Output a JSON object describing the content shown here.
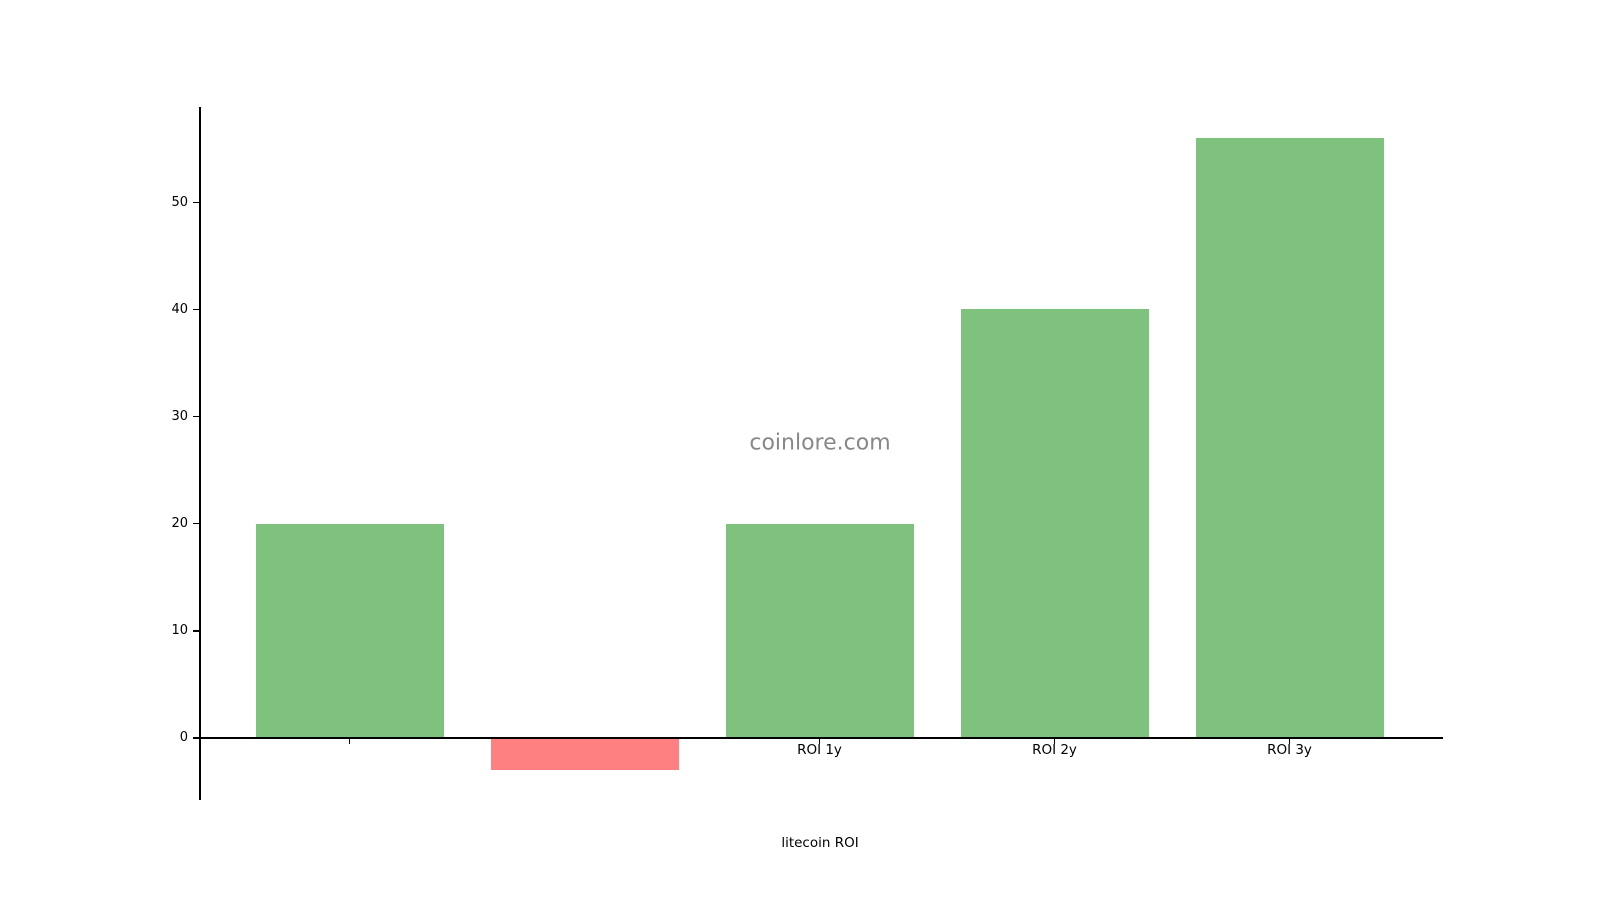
{
  "page": {
    "background": "#ffffff"
  },
  "watermark": {
    "text": "coinlore.com",
    "color": "#888888"
  },
  "chart_data": {
    "type": "bar",
    "title": "litecoin ROI",
    "xlabel": "litecoin ROI",
    "ylabel": "",
    "categories": [
      "",
      "",
      "ROI 1y",
      "ROI 2y",
      "ROI 3y"
    ],
    "values": [
      20,
      -3,
      20,
      40,
      56
    ],
    "yticks": [
      0,
      10,
      20,
      30,
      40,
      50
    ],
    "ylim": [
      -5.8,
      58.9
    ],
    "positive_color": "#7ec27e",
    "negative_color": "#ff8080",
    "axis_color": "#000000",
    "grid": false,
    "legend": false
  }
}
